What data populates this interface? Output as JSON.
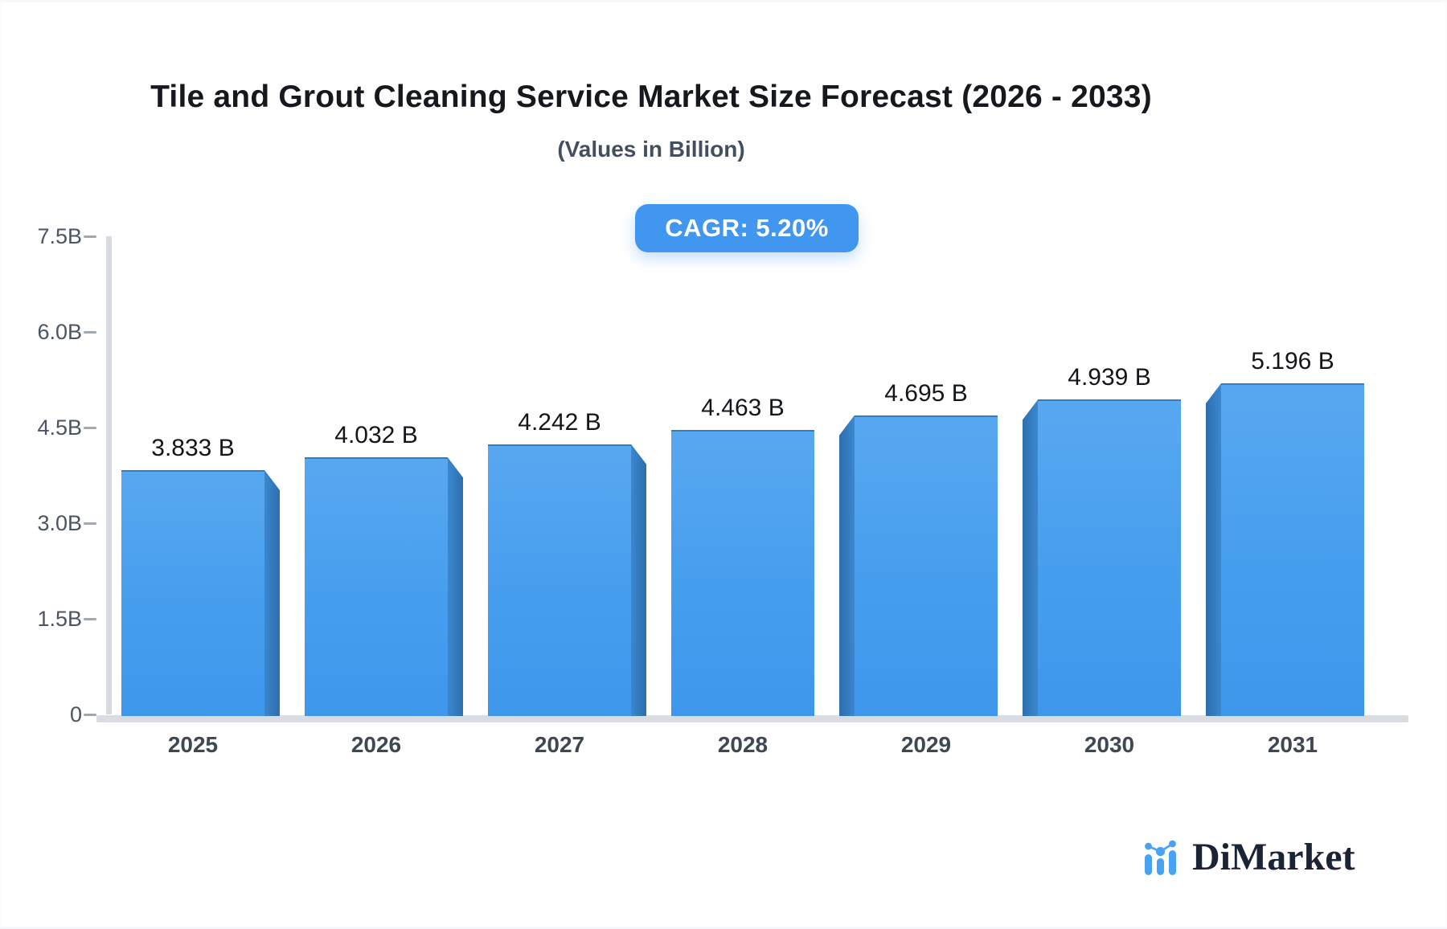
{
  "title": "Tile and Grout Cleaning Service Market Size Forecast (2026 - 2033)",
  "subtitle": "(Values in Billion)",
  "badge": {
    "label": "CAGR: 5.20%",
    "color": "#4196ef"
  },
  "brand": {
    "name": "DiMarket",
    "icon": "bar-chart-logo-icon",
    "icon_color": "#4aa3f2",
    "text_color": "#1b2434"
  },
  "colors": {
    "bar_front_top": "#58a8f0",
    "bar_front_bottom": "#3e97ec",
    "bar_side_dark": "#2d6fae",
    "bar_top_edge": "#2d7ec8",
    "axis": "#d7dbe0",
    "tick": "#9fa7b1",
    "axis_text": "#4a5462",
    "category_text": "#3d4854",
    "value_text": "#121519"
  },
  "chart_data": {
    "type": "bar",
    "title": "Tile and Grout Cleaning Service Market Size Forecast (2026 - 2033)",
    "subtitle": "(Values in Billion)",
    "annotation": "CAGR: 5.20%",
    "categories": [
      "2025",
      "2026",
      "2027",
      "2028",
      "2029",
      "2030",
      "2031"
    ],
    "values": [
      3.833,
      4.032,
      4.242,
      4.463,
      4.695,
      4.939,
      5.196
    ],
    "value_labels": [
      "3.833 B",
      "4.032 B",
      "4.242 B",
      "4.463 B",
      "4.695 B",
      "4.939 B",
      "5.196 B"
    ],
    "unit": "Billion",
    "xlabel": "",
    "ylabel": "",
    "ylim": [
      0,
      7.5
    ],
    "yticks": [
      {
        "label": "7.5B",
        "value": 7.5
      },
      {
        "label": "6.0B",
        "value": 6.0
      },
      {
        "label": "4.5B",
        "value": 4.5
      },
      {
        "label": "3.0B",
        "value": 3.0
      },
      {
        "label": "1.5B",
        "value": 1.5
      },
      {
        "label": "0",
        "value": 0
      }
    ],
    "grid": false,
    "legend": false,
    "bar_style": "3d-bevel"
  }
}
